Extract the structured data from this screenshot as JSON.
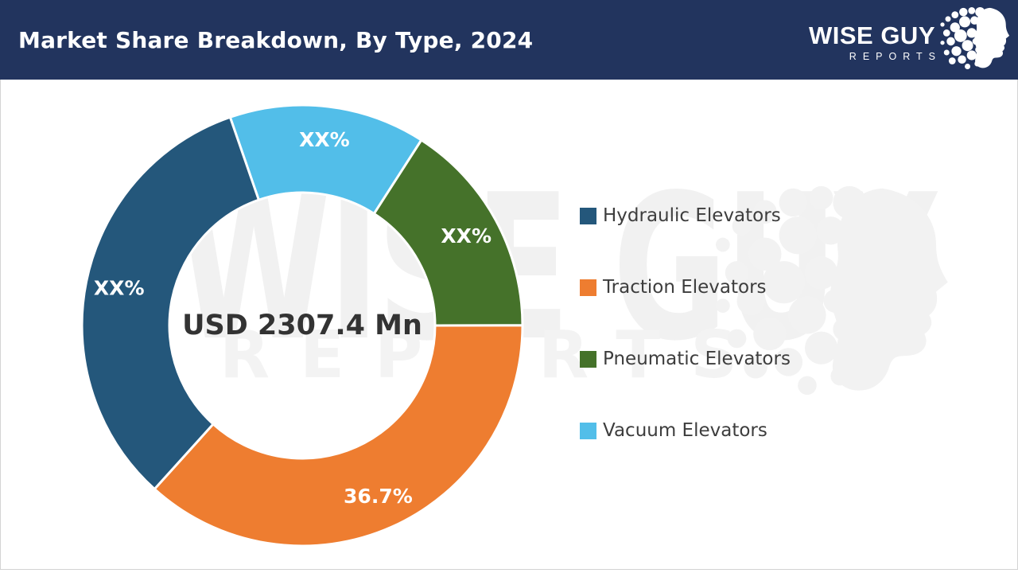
{
  "header": {
    "title": "Market Share Breakdown, By Type, 2024",
    "bg_color": "#22345E",
    "logo": {
      "line1": "WISE GUY",
      "line2": "REPORTS"
    }
  },
  "watermark": {
    "line1": "WISE GUY",
    "line2": "REPORTS"
  },
  "chart_data": {
    "type": "pie",
    "subtype": "donut",
    "center_label": "USD 2307.4 Mn",
    "start_angle_deg": -19.1,
    "clockwise": true,
    "outer_radius": 277,
    "inner_radius": 167,
    "label_radius": 235,
    "slices": [
      {
        "name": "Vacuum Elevators",
        "value": 14.4,
        "label": "XX%",
        "color": "#52BEE9"
      },
      {
        "name": "Pneumatic Elevators",
        "value": 15.9,
        "label": "XX%",
        "color": "#45722A"
      },
      {
        "name": "Traction Elevators",
        "value": 36.7,
        "label": "36.7%",
        "color": "#EE7D30"
      },
      {
        "name": "Hydraulic Elevators",
        "value": 33.0,
        "label": "XX%",
        "color": "#24577B"
      }
    ]
  },
  "legend": {
    "items": [
      {
        "label": "Hydraulic Elevators",
        "color": "#24577B"
      },
      {
        "label": "Traction Elevators",
        "color": "#EE7D30"
      },
      {
        "label": "Pneumatic Elevators",
        "color": "#45722A"
      },
      {
        "label": "Vacuum Elevators",
        "color": "#52BEE9"
      }
    ]
  }
}
